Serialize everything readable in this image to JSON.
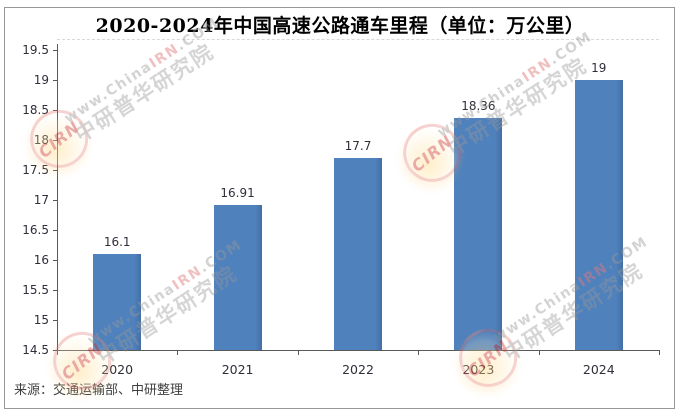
{
  "frame": {
    "background": "#ffffff",
    "border_color": "#979797"
  },
  "chart_data": {
    "type": "bar",
    "title": "2020-2024年中国高速公路通车里程（单位：万公里）",
    "categories": [
      "2020",
      "2021",
      "2022",
      "2023",
      "2024"
    ],
    "values": [
      16.1,
      16.91,
      17.7,
      18.36,
      19
    ],
    "value_labels": [
      "16.1",
      "16.91",
      "17.7",
      "18.36",
      "19"
    ],
    "xlabel": "",
    "ylabel": "",
    "ylim": [
      14.5,
      19.5
    ],
    "ytick_step": 0.5,
    "ytick_labels": [
      "19.5",
      "19",
      "18.5",
      "18",
      "17.5",
      "17",
      "16.5",
      "16",
      "15.5",
      "15",
      "14.5"
    ],
    "grid": false,
    "legend_position": "none",
    "bar_color": "#4f81bd",
    "axis_color": "#595959",
    "tick_label_color": "#2f2f3a"
  },
  "source_note": "来源：交通运输部、中研整理",
  "watermark": {
    "logo_text": "CIRN",
    "line1_prefix": "www.China",
    "line1_accent": "IRN",
    "line1_suffix": ".COM",
    "line2": "中研普华研究院",
    "accent_color": "#e07a7a",
    "gray_color": "#999999"
  }
}
